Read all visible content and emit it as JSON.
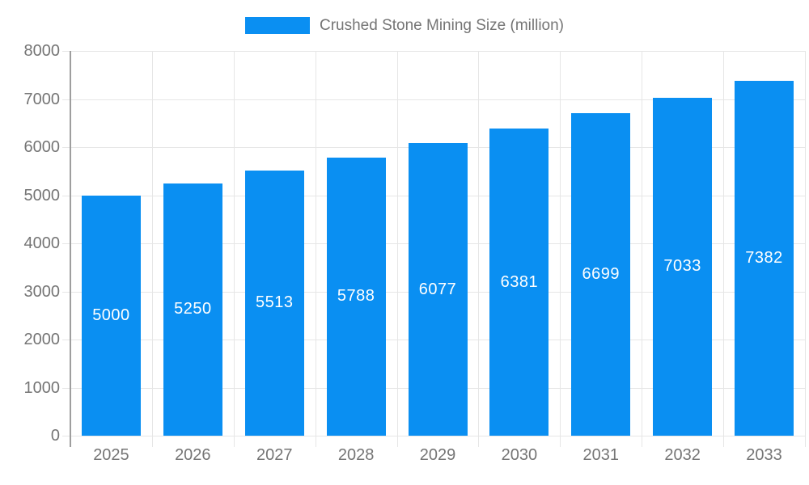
{
  "chart_data": {
    "type": "bar",
    "title": "Crushed Stone Mining Size (million)",
    "legend": {
      "label": "Crushed Stone Mining Size (million)",
      "position": "top"
    },
    "categories": [
      "2025",
      "2026",
      "2027",
      "2028",
      "2029",
      "2030",
      "2031",
      "2032",
      "2033"
    ],
    "values": [
      5000,
      5250,
      5513,
      5788,
      6077,
      6381,
      6699,
      7033,
      7382
    ],
    "value_labels": [
      "5000",
      "5250",
      "5513",
      "5788",
      "6077",
      "6381",
      "6699",
      "7033",
      "7382"
    ],
    "xlabel": "",
    "ylabel": "",
    "ylim": [
      0,
      8000
    ],
    "yticks": [
      0,
      1000,
      2000,
      3000,
      4000,
      5000,
      6000,
      7000,
      8000
    ],
    "grid": true,
    "legend_position": "top",
    "colors": {
      "bar": "#0a8ff2",
      "grid": "#e6e6e6",
      "axis": "#9e9e9e",
      "tick_label": "#757575",
      "value_label": "#ffffff",
      "legend_text": "#757575"
    }
  }
}
